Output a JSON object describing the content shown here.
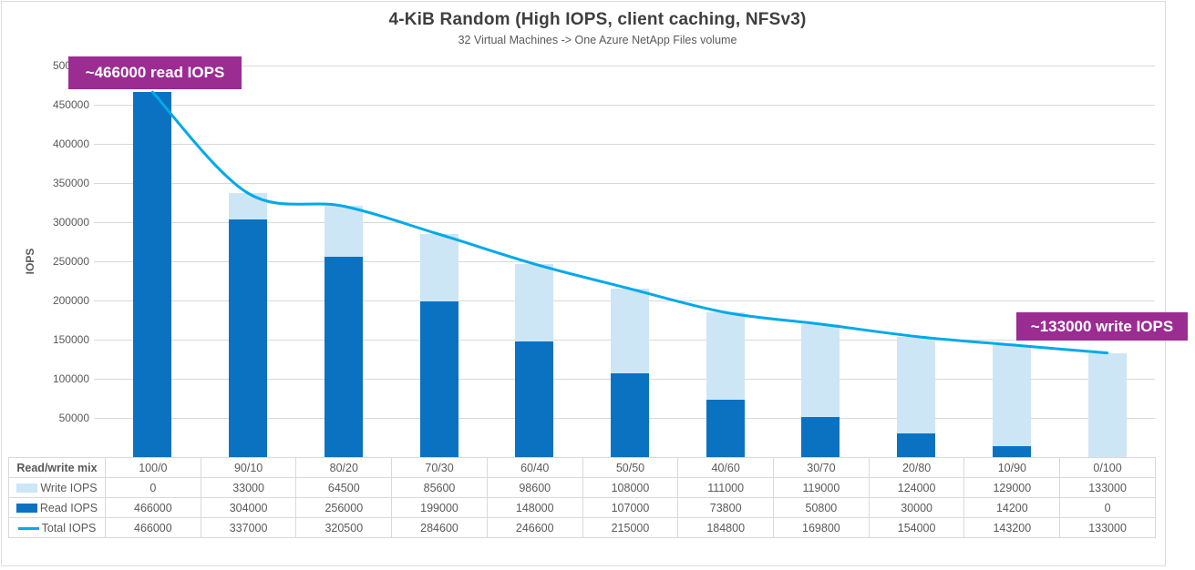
{
  "title": "4-KiB Random (High IOPS, client caching, NFSv3)",
  "subtitle": "32 Virtual Machines -> One Azure NetApp Files volume",
  "y_axis": {
    "title": "IOPS",
    "min": 0,
    "max": 500000,
    "step": 50000,
    "tick_labels": [
      "50000",
      "100000",
      "150000",
      "200000",
      "250000",
      "300000",
      "350000",
      "400000",
      "450000",
      "500000"
    ]
  },
  "annotations": {
    "read": {
      "text": "~466000 read IOPS"
    },
    "write": {
      "text": "~133000 write IOPS"
    }
  },
  "colors": {
    "read_bar": "#0b72c2",
    "write_bar": "#cde6f5",
    "total_line": "#00a9ea",
    "annotation_bg": "#9b2c92",
    "gridline": "#d9d9d9"
  },
  "chart_data": {
    "type": "combo",
    "title": "4-KiB Random (High IOPS, client caching, NFSv3)",
    "subtitle": "32 Virtual Machines -> One Azure NetApp Files volume",
    "categories": [
      "100/0",
      "90/10",
      "80/20",
      "70/30",
      "60/40",
      "50/50",
      "40/60",
      "30/70",
      "20/80",
      "10/90",
      "0/100"
    ],
    "series": [
      {
        "name": "Write IOPS",
        "type": "bar",
        "stacked": true,
        "values": [
          0,
          33000,
          64500,
          85600,
          98600,
          108000,
          111000,
          119000,
          124000,
          129000,
          133000
        ]
      },
      {
        "name": "Read IOPS",
        "type": "bar",
        "stacked": true,
        "values": [
          466000,
          304000,
          256000,
          199000,
          148000,
          107000,
          73800,
          50800,
          30000,
          14200,
          0
        ]
      },
      {
        "name": "Total IOPS",
        "type": "line",
        "smooth": true,
        "values": [
          466000,
          337000,
          320500,
          284600,
          246600,
          215000,
          184800,
          169800,
          154000,
          143200,
          133000
        ]
      }
    ],
    "xlabel": "Read/write mix",
    "ylabel": "IOPS",
    "ylim": [
      0,
      500000
    ],
    "grid": true,
    "legend_position": "data-table"
  },
  "table": {
    "corner_label": "Read/write mix"
  }
}
